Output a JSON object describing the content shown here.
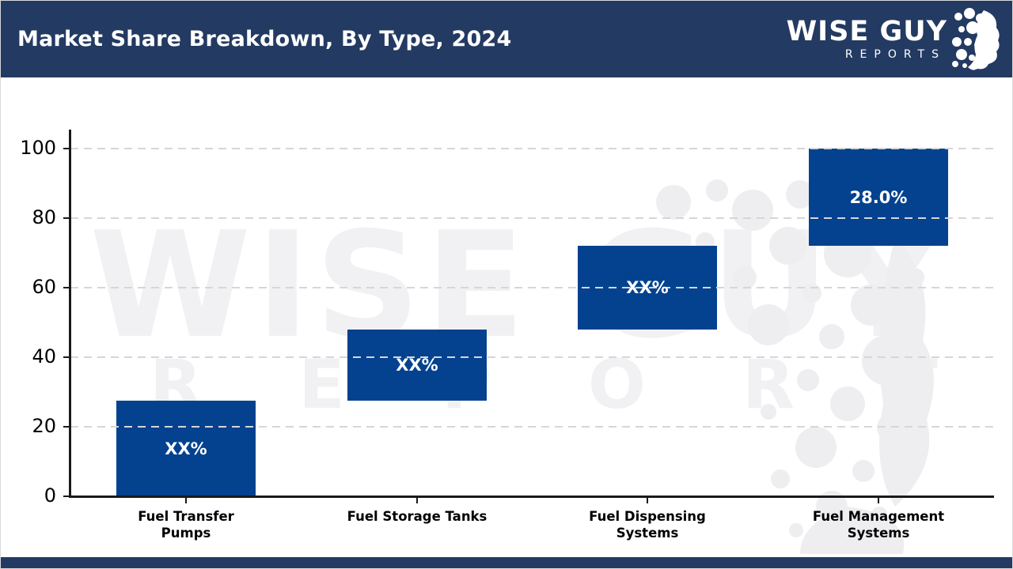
{
  "header": {
    "title": "Market Share Breakdown, By Type, 2024",
    "logo": {
      "line1": "WISE GUY",
      "line2": "REPORTS"
    }
  },
  "watermark": {
    "line1": "WISE GUY",
    "line2": "R E P O R T S"
  },
  "chart_data": {
    "type": "bar",
    "subtype": "waterfall-floating-bars",
    "title": "Market Share Breakdown, By Type, 2024",
    "categories": [
      "Fuel Transfer\nPumps",
      "Fuel Storage Tanks",
      "Fuel Dispensing\nSystems",
      "Fuel Management\nSystems"
    ],
    "segments": [
      {
        "category": "Fuel Transfer Pumps",
        "label": "XX%",
        "start": 0,
        "end": 27.5
      },
      {
        "category": "Fuel Storage Tanks",
        "label": "XX%",
        "start": 27.5,
        "end": 48
      },
      {
        "category": "Fuel Dispensing Systems",
        "label": "XX%",
        "start": 48,
        "end": 72
      },
      {
        "category": "Fuel Management Systems",
        "label": "28.0%",
        "start": 72,
        "end": 100
      }
    ],
    "yticks": [
      0,
      20,
      40,
      60,
      80,
      100
    ],
    "ylim": [
      0,
      105
    ],
    "xlabel": "",
    "ylabel": "",
    "legend": "none",
    "grid": "horizontal-dashed",
    "bar_color": "#04428f",
    "bar_label_color": "#ffffff",
    "grid_color": "#d6d6d6",
    "axis_color": "#1a1a1a",
    "header_bg": "#233a62",
    "watermark_color": "#f1f1f4"
  }
}
